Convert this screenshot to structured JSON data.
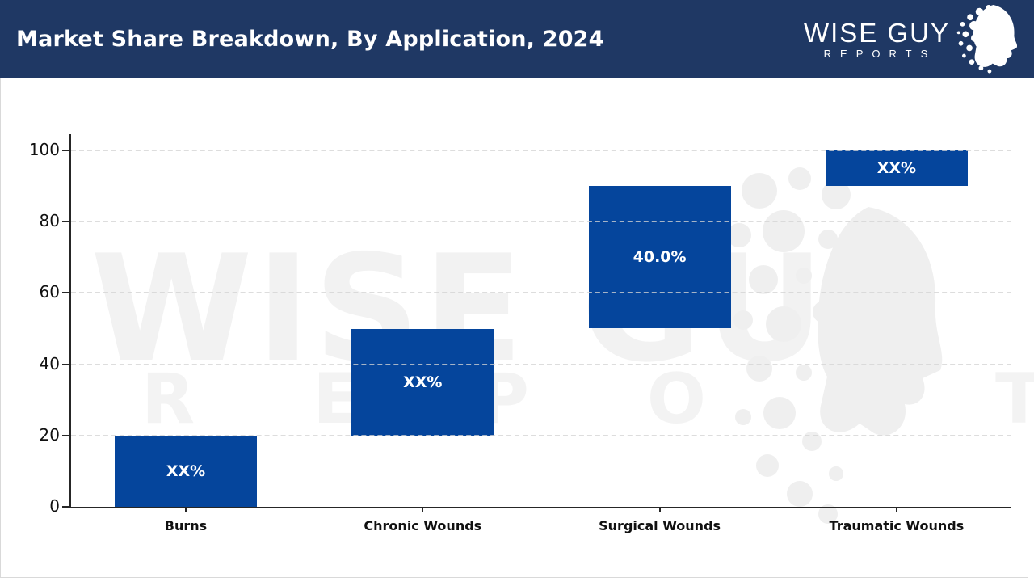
{
  "header": {
    "title": "Market Share Breakdown, By Application, 2024",
    "logo": {
      "line1": "WISE GUY",
      "line2": "REPORTS"
    }
  },
  "watermark": {
    "line1": "WISE GU",
    "line2": "R E P O R T S"
  },
  "colors": {
    "header_bg": "#1f3864",
    "bar": "#05459c",
    "bar_label": "#ffffff",
    "gridline": "#d9d9d9",
    "axis": "#262626",
    "watermark": "#f2f2f2",
    "frame_border": "#d9d9d9"
  },
  "chart_data": {
    "type": "bar",
    "subtype": "floating-segment-waterfall",
    "title": "Market Share Breakdown, By Application, 2024",
    "categories": [
      "Burns",
      "Chronic Wounds",
      "Surgical Wounds",
      "Traumatic Wounds"
    ],
    "segments": [
      {
        "category": "Burns",
        "start": 0,
        "end": 20,
        "label": "XX%"
      },
      {
        "category": "Chronic Wounds",
        "start": 20,
        "end": 50,
        "label": "XX%"
      },
      {
        "category": "Surgical Wounds",
        "start": 50,
        "end": 90,
        "label": "40.0%"
      },
      {
        "category": "Traumatic Wounds",
        "start": 90,
        "end": 100,
        "label": "XX%"
      }
    ],
    "values": [
      20,
      30,
      40,
      10
    ],
    "yticks": [
      0,
      20,
      40,
      60,
      80,
      100
    ],
    "ylim": [
      0,
      105
    ],
    "xlabel": "",
    "ylabel": "",
    "grid": "horizontal-dashed",
    "legend": "none",
    "bar_color": "#05459c",
    "value_label_color": "#ffffff"
  }
}
